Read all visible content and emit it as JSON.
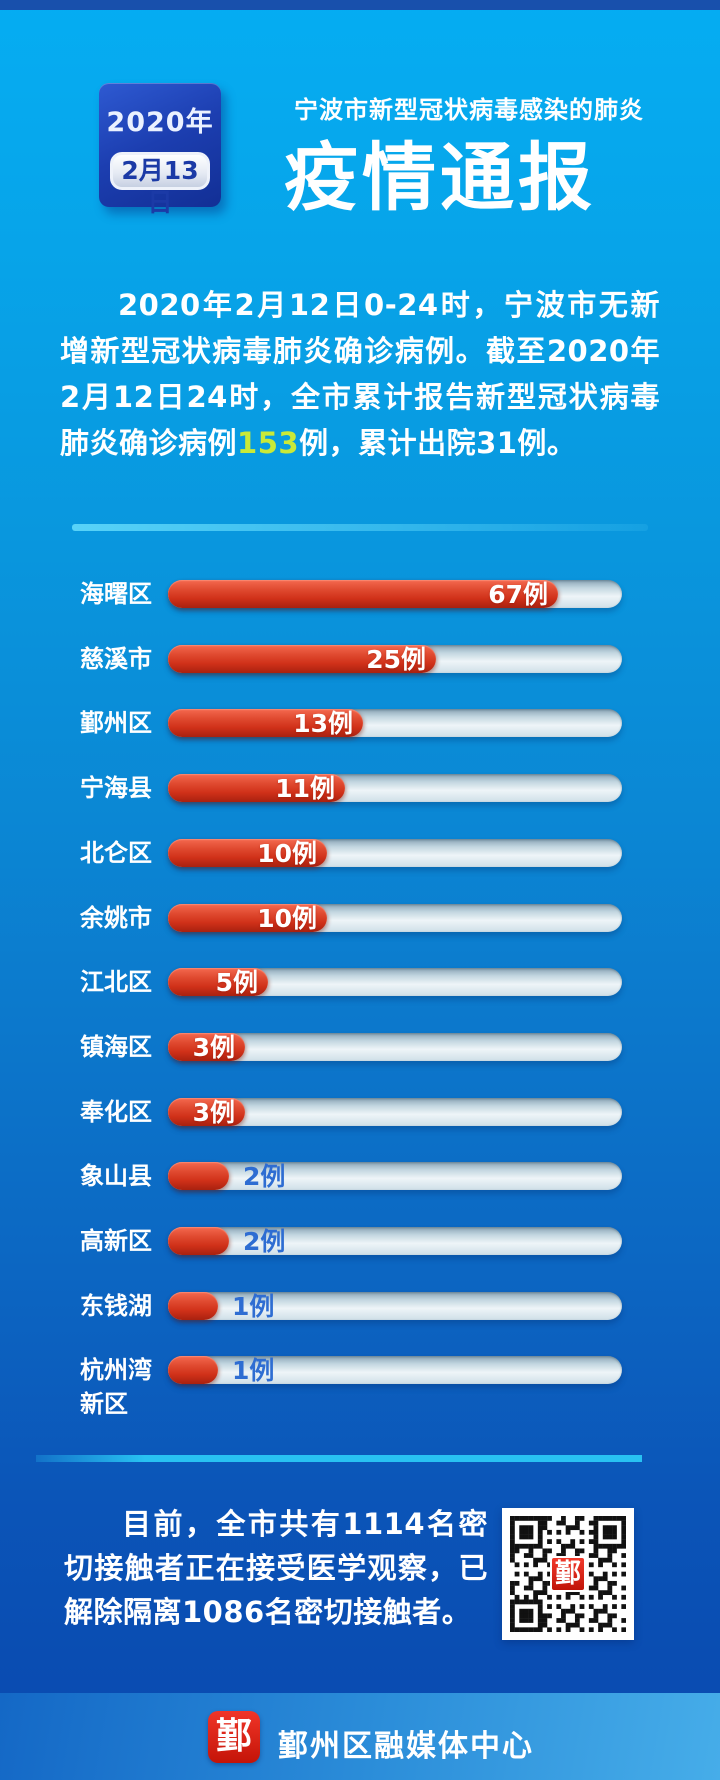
{
  "header": {
    "date_year": "2020年",
    "date_day": "2月13日",
    "subtitle": "宁波市新型冠状病毒感染的肺炎",
    "title": "疫情通报"
  },
  "summary": {
    "text_before": "2020年2月12日0-24时，宁波市无新增新型冠状病毒肺炎确诊病例。截至2020年2月12日24时，全市累计报告新型冠状病毒肺炎确诊病例",
    "highlight": "153",
    "text_after": "例，累计出院31例。",
    "highlight_color": "#c9ea38"
  },
  "chart_data": {
    "type": "bar",
    "orientation": "horizontal",
    "categories": [
      "海曙区",
      "慈溪市",
      "鄞州区",
      "宁海县",
      "北仑区",
      "余姚市",
      "江北区",
      "镇海区",
      "奉化区",
      "象山县",
      "高新区",
      "东钱湖",
      "杭州湾新区"
    ],
    "values": [
      67,
      25,
      13,
      11,
      10,
      10,
      5,
      3,
      3,
      2,
      2,
      1,
      1
    ],
    "unit_suffix": "例",
    "fill_pct": [
      86,
      59,
      43,
      39,
      35,
      35,
      22,
      17,
      17,
      13.5,
      13.5,
      11,
      11
    ],
    "value_label_inside_min": 3,
    "bar_color": "#d03119",
    "track_color": "#e6eff4",
    "outside_label_color": "#2e6dd2",
    "xlim": [
      0,
      78
    ],
    "grid": false,
    "legend": "none"
  },
  "note": {
    "text": "目前，全市共有1114名密切接触者正在接受医学观察，已解除隔离1086名密切接触者。"
  },
  "qr": {
    "center_glyph": "鄞"
  },
  "footer": {
    "logo_glyph": "鄞",
    "text": "鄞州区融媒体中心"
  },
  "colors": {
    "background_top": "#05adf2",
    "background_bottom": "#0a4ab0",
    "top_bar": "#1850ac",
    "badge": "#1c3eb0",
    "badge_pill_text": "#1b3aa6",
    "accent_cyan": "#28c2f2",
    "logo_red": "#d81f12"
  }
}
